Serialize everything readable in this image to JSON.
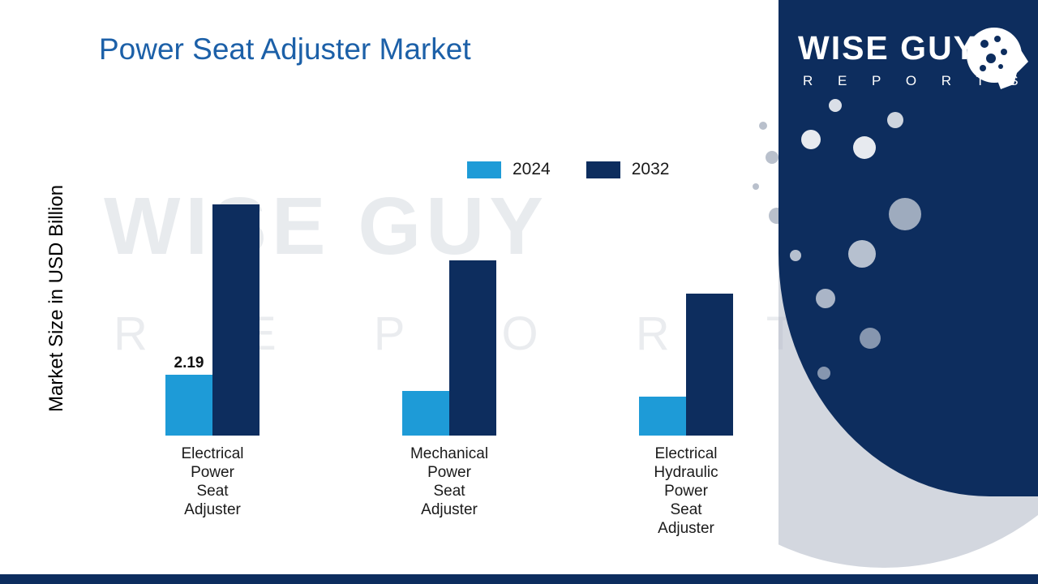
{
  "page": {
    "title": "Power Seat Adjuster Market"
  },
  "axis": {
    "y_label": "Market Size in USD Billion"
  },
  "legend": {
    "items": [
      {
        "label": "2024",
        "color": "#1e9bd7"
      },
      {
        "label": "2032",
        "color": "#0d2d5e"
      }
    ]
  },
  "watermark": {
    "line1": "WISE GUY",
    "line2": "R E P O R T S"
  },
  "brand": {
    "name": "WISE GUY",
    "reports": "R E P O R T S"
  },
  "chart_data": {
    "type": "bar",
    "title": "Power Seat Adjuster Market",
    "ylabel": "Market Size in USD Billion",
    "categories": [
      "Electrical Power Seat Adjuster",
      "Mechanical Power Seat Adjuster",
      "Electrical Hydraulic Power Seat Adjuster"
    ],
    "series": [
      {
        "name": "2024",
        "color": "#1e9bd7",
        "values": [
          2.19,
          1.6,
          1.4
        ],
        "value_labels": [
          "2.19",
          "",
          ""
        ]
      },
      {
        "name": "2032",
        "color": "#0d2d5e",
        "values": [
          8.3,
          6.3,
          5.1
        ],
        "value_labels": [
          "",
          "",
          ""
        ]
      }
    ],
    "ylim": [
      0,
      9
    ],
    "legend_position": "top",
    "grid": false
  }
}
